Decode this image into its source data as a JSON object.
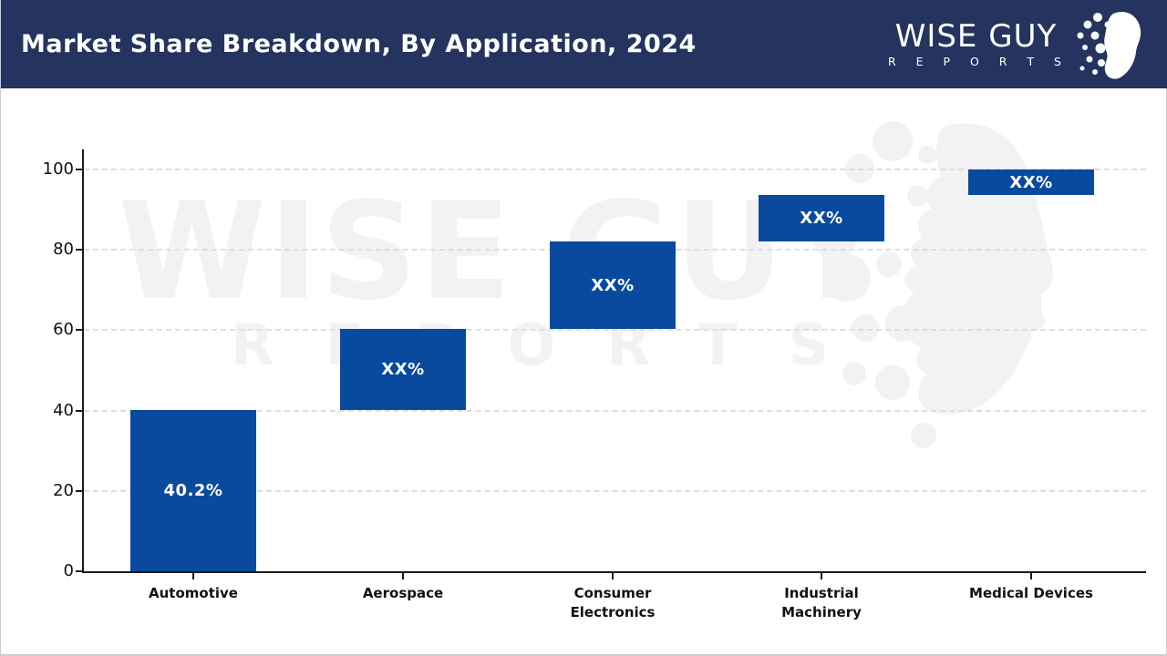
{
  "header": {
    "title": "Market Share Breakdown, By Application, 2024",
    "bg_color": "#24345E",
    "logo": {
      "line1": "WISE GUY",
      "line2": "R E P O R T S"
    }
  },
  "watermark": {
    "line1": "WISE GUY",
    "line2": "REPORTS"
  },
  "chart_data": {
    "type": "bar",
    "subtype": "waterfall",
    "title": "Market Share Breakdown, By Application, 2024",
    "xlabel": "",
    "ylabel": "",
    "categories": [
      "Automotive",
      "Aerospace",
      "Consumer\nElectronics",
      "Industrial\nMachinery",
      "Medical Devices"
    ],
    "segments": [
      {
        "category": "Automotive",
        "start": 0,
        "end": 40.2,
        "label": "40.2%"
      },
      {
        "category": "Aerospace",
        "start": 40.2,
        "end": 60.3,
        "label": "XX%"
      },
      {
        "category": "Consumer Electronics",
        "start": 60.3,
        "end": 82.0,
        "label": "XX%"
      },
      {
        "category": "Industrial Machinery",
        "start": 82.0,
        "end": 93.6,
        "label": "XX%"
      },
      {
        "category": "Medical Devices",
        "start": 93.6,
        "end": 100.0,
        "label": "XX%"
      }
    ],
    "yticks": [
      0,
      20,
      40,
      60,
      80,
      100
    ],
    "ylim": [
      0,
      105
    ],
    "grid": "horizontal-dashed",
    "legend": "none",
    "bar_color": "#0A4A9E",
    "bar_label_color": "#FFFFFF",
    "grid_color": "#DEDEDE",
    "axis_color": "#1A1A1A",
    "watermark_color": "#F2F2F4"
  }
}
